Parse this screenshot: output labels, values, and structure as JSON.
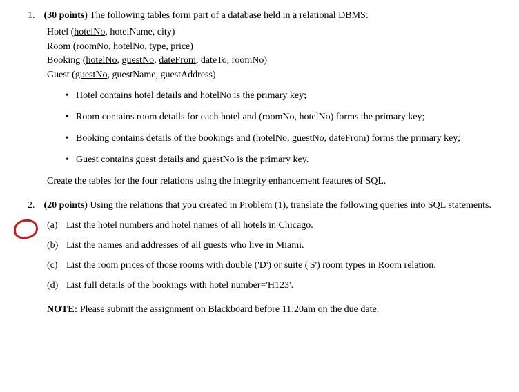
{
  "q1": {
    "number": "1.",
    "points": "(30 points)",
    "intro": "The following tables form part of a database held in a relational DBMS:",
    "schema": {
      "hotel_name": "Hotel",
      "hotel_attrs_pre": "(",
      "hotel_key": "hotelNo",
      "hotel_rest": ", hotelName, city)",
      "room_name": "Room",
      "room_pre": "(",
      "room_key1": "roomNo",
      "room_sep": ", ",
      "room_key2": "hotelNo",
      "room_rest": ", type, price)",
      "booking_name": "Booking",
      "booking_pre": "(",
      "booking_key1": "hotelNo",
      "booking_sep1": ", ",
      "booking_key2": "guestNo",
      "booking_sep2": ", ",
      "booking_key3": "dateFrom",
      "booking_rest": ", dateTo, roomNo)",
      "guest_name": "Guest",
      "guest_pre": "(",
      "guest_key": "guestNo",
      "guest_rest": ", guestName, guestAddress)"
    },
    "bullets": {
      "b1": "Hotel contains hotel details and hotelNo is the primary key;",
      "b2": "Room contains room details for each hotel and (roomNo, hotelNo) forms the primary key;",
      "b3": "Booking contains details of the bookings and (hotelNo, guestNo, dateFrom) forms the primary key;",
      "b4": "Guest contains guest details and guestNo is the primary key."
    },
    "task": "Create the tables for the four relations using the integrity enhancement features of SQL."
  },
  "q2": {
    "number": "2.",
    "points": "(20 points)",
    "intro": "Using the relations that you created in Problem (1), translate the following queries into SQL statements.",
    "items": {
      "a_label": "(a)",
      "a_text": "List the hotel numbers and hotel names of all hotels in Chicago.",
      "b_label": "(b)",
      "b_text": "List the names and addresses of all guests who live in Miami.",
      "c_label": "(c)",
      "c_text": "List the room prices of those rooms with double ('D') or suite ('S') room types in Room relation.",
      "d_label": "(d)",
      "d_text": "List full details of the bookings with hotel number='H123'."
    }
  },
  "note": {
    "label": "NOTE:",
    "text": "Please submit the assignment on Blackboard before 11:20am on the due date."
  },
  "annotation": {
    "color": "#c41e1e"
  }
}
